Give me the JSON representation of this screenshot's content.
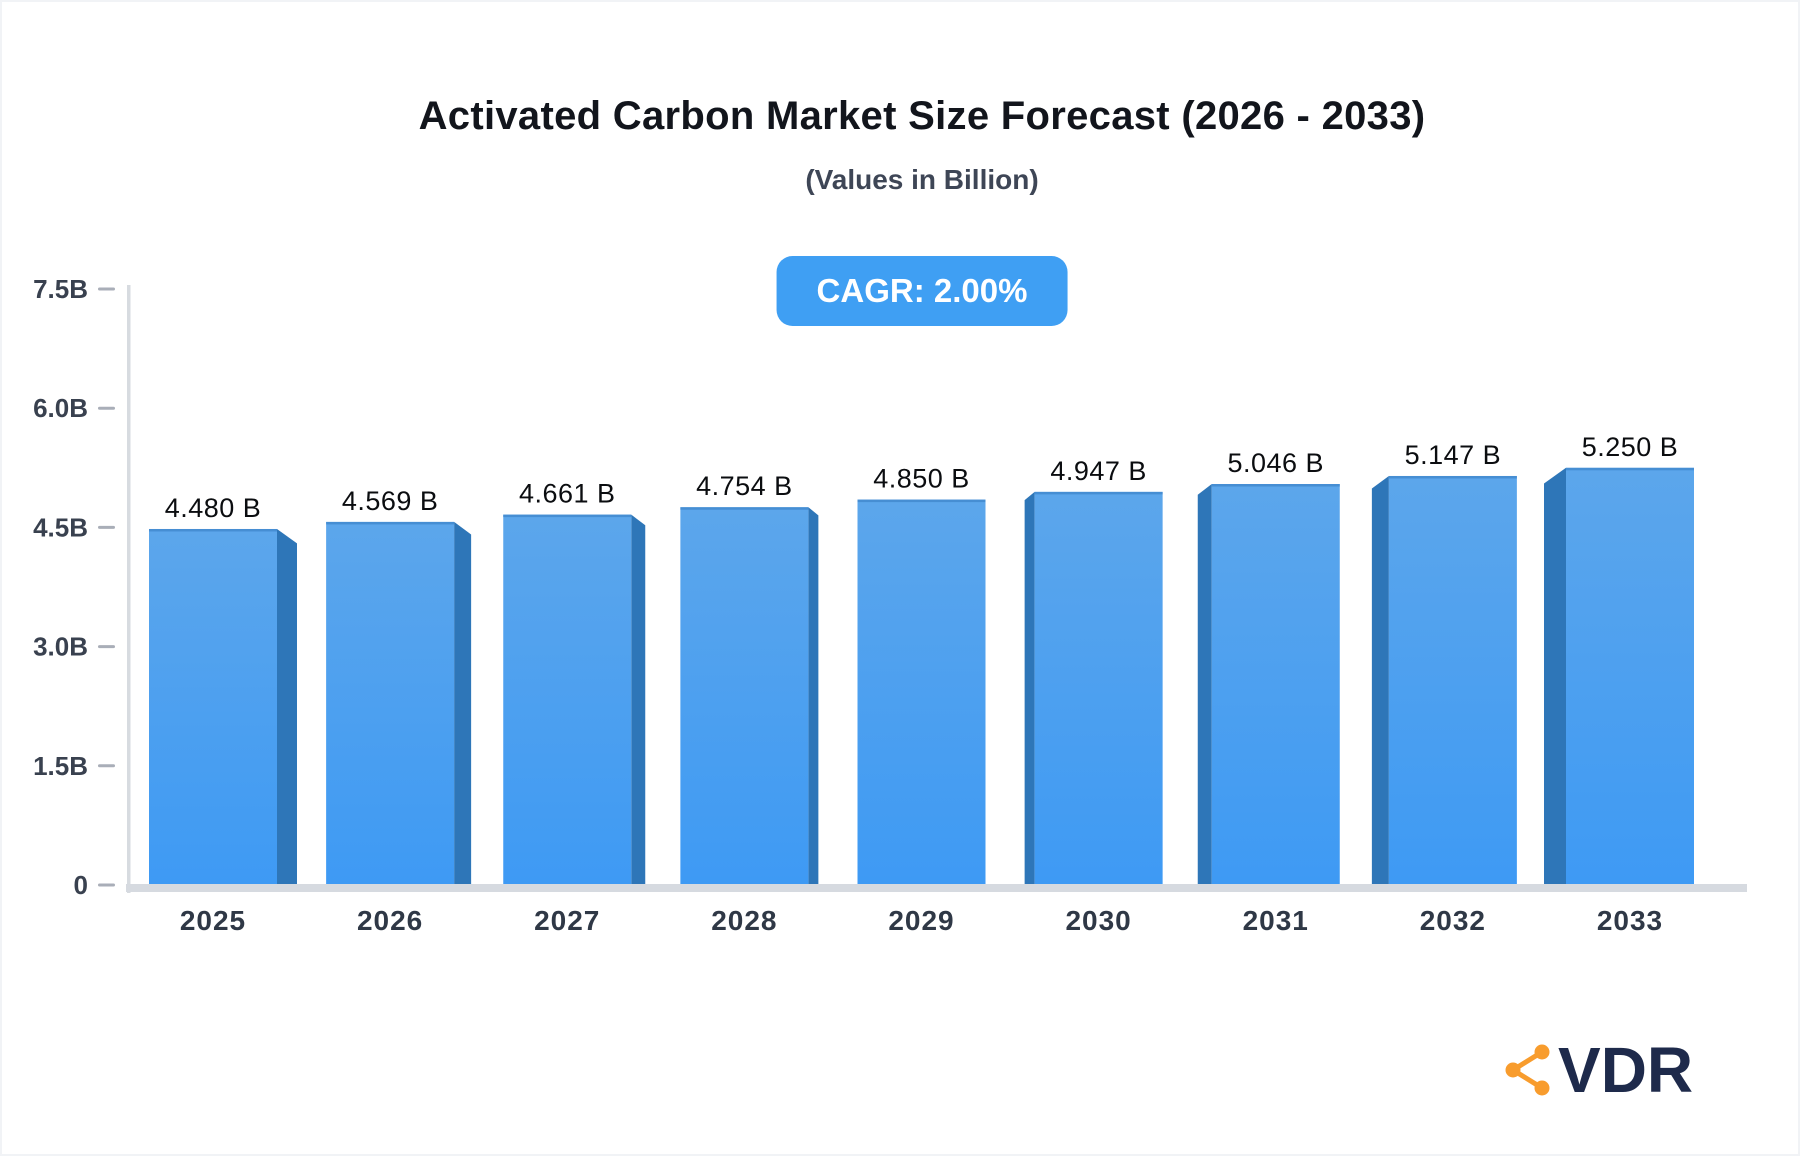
{
  "chart_data": {
    "type": "bar",
    "title": "Activated Carbon Market Size Forecast (2026 - 2033)",
    "subtitle": "(Values in Billion)",
    "badge": "CAGR: 2.00%",
    "categories": [
      "2025",
      "2026",
      "2027",
      "2028",
      "2029",
      "2030",
      "2031",
      "2032",
      "2033"
    ],
    "values": [
      4.48,
      4.569,
      4.661,
      4.754,
      4.85,
      4.947,
      5.046,
      5.147,
      5.25
    ],
    "value_labels": [
      "4.480 B",
      "4.569 B",
      "4.661 B",
      "4.754 B",
      "4.850 B",
      "4.947 B",
      "5.046 B",
      "5.147 B",
      "5.250 B"
    ],
    "xlabel": "",
    "ylabel": "",
    "ylim": [
      0,
      7.5
    ],
    "ytick_values": [
      7.5,
      6.0,
      4.5,
      3.0,
      1.5,
      0
    ],
    "ytick_labels": [
      "7.5B",
      "6.0B",
      "4.5B",
      "3.0B",
      "1.5B",
      "0"
    ],
    "grid": false,
    "legend": "none",
    "style": "3d-column",
    "colors": {
      "bar_top": "#5CA6EB",
      "bar_bottom": "#3E9AF4",
      "bar_side": "#2E76B8",
      "bar_top_edge": "#4289CF",
      "axis_line": "#D7DBE0",
      "tick_dash": "#A9AEB8",
      "floor": "#D6DAE0",
      "badge_bg": "#3F9FF3",
      "badge_text": "#FFFFFF"
    }
  },
  "footer": {
    "logo_text": "VDR",
    "logo_text_color": "#1E2A4B",
    "logo_icon": "share-network-icon",
    "logo_icon_color": "#F89C2D"
  }
}
